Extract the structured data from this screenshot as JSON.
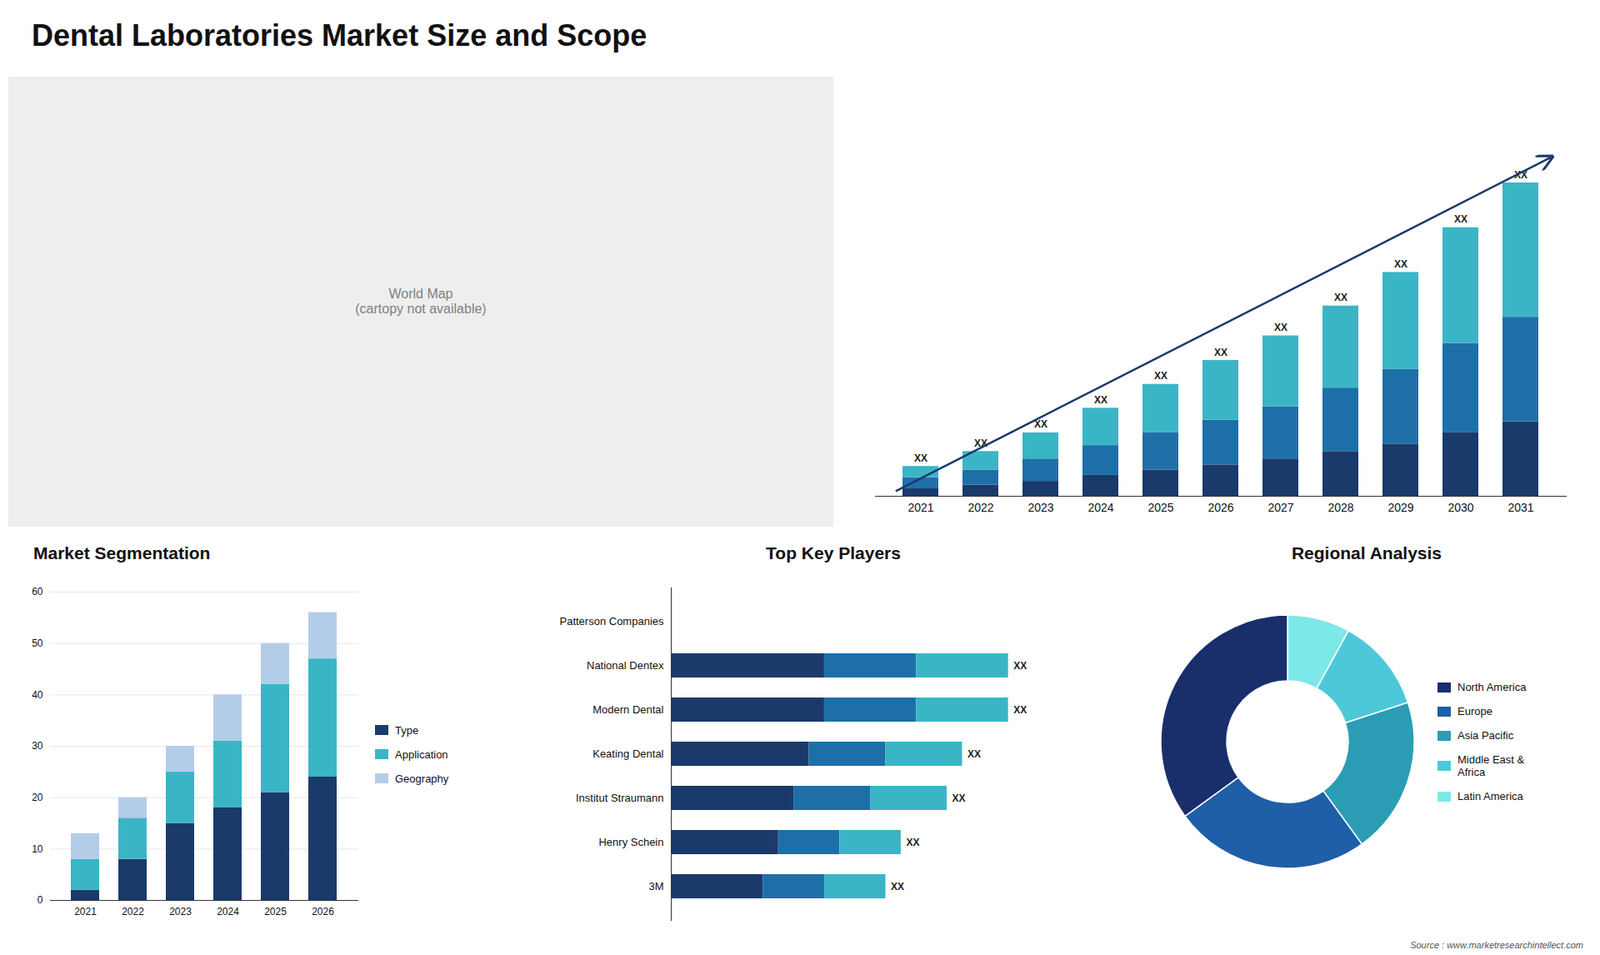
{
  "chart_data": [
    {
      "type": "map",
      "annotations": [
        "World Map\n(cartopy not available)"
      ]
    },
    {
      "type": "bar",
      "title": "Dental Laboratories Market Size and Scope",
      "stacked": true,
      "categories": [
        "2021",
        "2022",
        "2023",
        "2024",
        "2025",
        "2026",
        "2027",
        "2028",
        "2029",
        "2030",
        "2031"
      ],
      "series": [
        {
          "color": "#1a3a6b",
          "values": [
            1,
            1.5,
            2,
            2.8,
            3.5,
            4.2,
            5,
            6,
            7,
            8.5,
            10
          ]
        },
        {
          "color": "#1e6fa8",
          "values": [
            1.5,
            2,
            3,
            4,
            5,
            6,
            7,
            8.5,
            10,
            12,
            14
          ]
        },
        {
          "color": "#3ab5c6",
          "values": [
            1.5,
            2.5,
            3.5,
            5,
            6.5,
            8,
            9.5,
            11,
            13,
            15.5,
            18
          ],
          "value_labels": [
            "XX",
            "XX",
            "XX",
            "XX",
            "XX",
            "XX",
            "XX",
            "XX",
            "XX",
            "XX",
            "XX"
          ]
        }
      ],
      "data_labels": true,
      "ylim": [
        0,
        52.5
      ],
      "tick_labels": "x",
      "grid": false
    },
    {
      "type": "bar",
      "title": "Market Segmentation",
      "stacked": true,
      "categories": [
        "2021",
        "2022",
        "2023",
        "2024",
        "2025",
        "2026"
      ],
      "series": [
        {
          "name": "Type",
          "color": "#1a3a6b",
          "values": [
            2,
            8,
            15,
            18,
            21,
            24
          ]
        },
        {
          "name": "Application",
          "color": "#3ab5c6",
          "values": [
            6,
            8,
            10,
            13,
            21,
            23
          ]
        },
        {
          "name": "Geography",
          "color": "#b3cde8",
          "values": [
            5,
            4,
            5,
            9,
            8,
            9
          ]
        }
      ],
      "ylim": [
        0,
        60
      ],
      "yticks": [
        0,
        10,
        20,
        30,
        40,
        50,
        60
      ],
      "grid": true,
      "legend": "right"
    },
    {
      "type": "bar",
      "title": "Top Key Players",
      "orientation": "horizontal",
      "stacked": true,
      "categories": [
        "Patterson Companies",
        "National Dentex",
        "Modern Dental",
        "Keating Dental",
        "Institut Straumann",
        "Henry Schein",
        "3M"
      ],
      "series": [
        {
          "color": "#1a3a6b",
          "values": [
            0,
            5,
            5,
            4.5,
            4,
            3.5,
            3
          ]
        },
        {
          "color": "#1e6fa8",
          "values": [
            0,
            3,
            3,
            2.5,
            2.5,
            2,
            2
          ]
        },
        {
          "color": "#3ab5c6",
          "values": [
            0,
            3,
            3,
            2.5,
            2.5,
            2,
            2
          ],
          "value_labels": [
            null,
            "XX",
            "XX",
            "XX",
            "XX",
            "XX",
            "XX"
          ]
        }
      ],
      "data_labels": true,
      "xlim": [
        0,
        14
      ],
      "tick_labels": "y",
      "grid": false
    },
    {
      "type": "donut",
      "title": "Regional Analysis",
      "categories": [
        "Latin America",
        "Middle East &\nAfrica",
        "Asia Pacific",
        "Europe",
        "North America"
      ],
      "values": [
        8,
        12,
        20,
        25,
        35
      ],
      "colors": [
        "#7de8e8",
        "#4dc8d8",
        "#2a9db5",
        "#1e5fa8",
        "#1a2e6b"
      ],
      "legend": "right",
      "annotations": [
        "Source : www.marketresearchintellect.com"
      ]
    }
  ]
}
